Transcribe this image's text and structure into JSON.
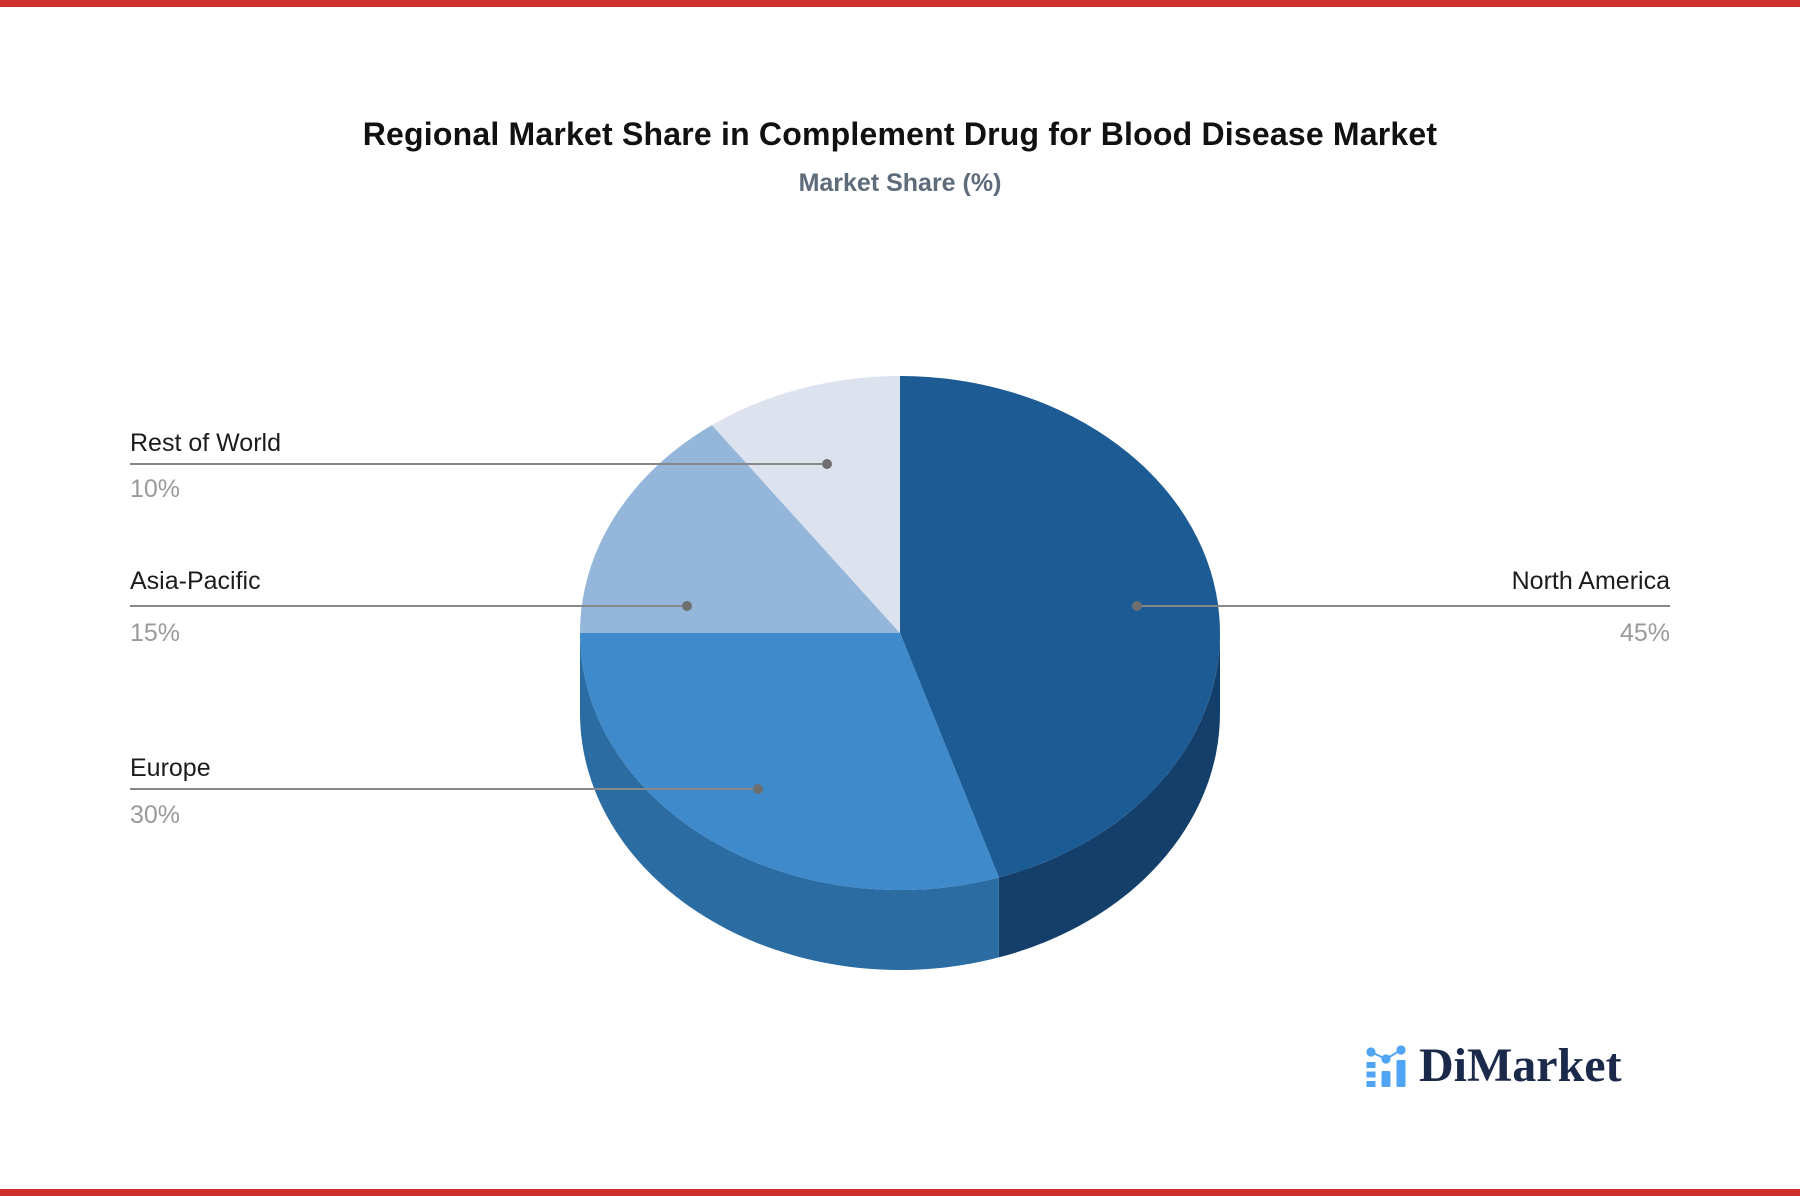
{
  "page": {
    "background": "#ffffff",
    "border_top_color": "#ce312d",
    "border_bottom_color": "#ce312d"
  },
  "header": {
    "title": "Regional Market Share in Complement Drug for Blood Disease Market",
    "subtitle": "Market Share (%)"
  },
  "chart_data": {
    "type": "pie",
    "style": "3d",
    "title": "Regional Market Share in Complement Drug for Blood Disease Market",
    "subtitle": "Market Share (%)",
    "unit": "%",
    "direction": "clockwise",
    "start_angle_deg": 0,
    "legend_position": "none",
    "labeling": "leader-lines",
    "slices": [
      {
        "label": "North America",
        "value": 45,
        "pct_label": "45%",
        "color": "#1d5b94",
        "side_color": "#153f6b"
      },
      {
        "label": "Europe",
        "value": 30,
        "pct_label": "30%",
        "color": "#3e8aca",
        "side_color": "#2b6ca3"
      },
      {
        "label": "Asia-Pacific",
        "value": 15,
        "pct_label": "15%",
        "color": "#93b6da",
        "side_color": "#7c9fc4"
      },
      {
        "label": "Rest of World",
        "value": 10,
        "pct_label": "10%",
        "color": "#dde3ee",
        "side_color": "#c3cddd"
      }
    ]
  },
  "branding": {
    "wordmark": "DiMarket",
    "icon": "bar-line-chart-icon",
    "icon_color": "#4fa5f3",
    "wordmark_color": "#1b2a4a"
  }
}
